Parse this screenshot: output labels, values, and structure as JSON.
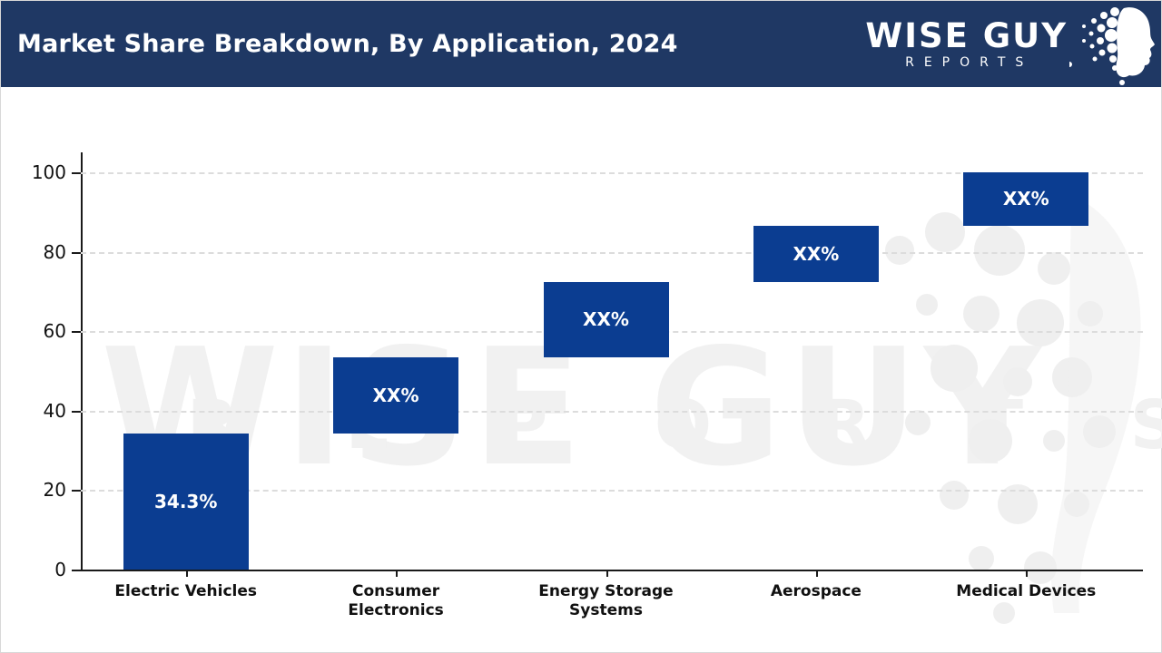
{
  "header": {
    "title": "Market Share Breakdown, By Application, 2024",
    "logo_line1": "WISE GUY",
    "logo_line2": "REPORTS"
  },
  "watermark": {
    "line1": "WISE GUY",
    "line2": "R E P O R T S"
  },
  "chart_data": {
    "type": "bar",
    "variant": "waterfall",
    "title": "Market Share Breakdown, By Application, 2024",
    "categories": [
      "Electric Vehicles",
      "Consumer Electronics",
      "Energy Storage Systems",
      "Aerospace",
      "Medical Devices"
    ],
    "categories_display": [
      [
        "Electric Vehicles"
      ],
      [
        "Consumer",
        "Electronics"
      ],
      [
        "Energy Storage",
        "Systems"
      ],
      [
        "Aerospace"
      ],
      [
        "Medical Devices"
      ]
    ],
    "segments": [
      {
        "category": "Electric Vehicles",
        "start": 0,
        "end": 34.3,
        "value": 34.3,
        "label": "34.3%"
      },
      {
        "category": "Consumer Electronics",
        "start": 34.3,
        "end": 53.5,
        "value": 19.2,
        "label": "XX%"
      },
      {
        "category": "Energy Storage Systems",
        "start": 53.5,
        "end": 72.4,
        "value": 18.9,
        "label": "XX%"
      },
      {
        "category": "Aerospace",
        "start": 72.4,
        "end": 86.6,
        "value": 14.2,
        "label": "XX%"
      },
      {
        "category": "Medical Devices",
        "start": 86.6,
        "end": 100,
        "value": 13.4,
        "label": "XX%"
      }
    ],
    "yticks": [
      0,
      20,
      40,
      60,
      80,
      100
    ],
    "ylim": [
      0,
      105
    ],
    "xlabel": "",
    "ylabel": "",
    "grid": {
      "axis": "y",
      "style": "dashed"
    },
    "legend": "none",
    "colors": {
      "bar": "#0b3d91",
      "bar_label": "#ffffff",
      "header_bg": "#1f3864",
      "header_text": "#ffffff",
      "axis": "#1a1a1a",
      "gridline": "#dcdcdc",
      "watermark": "#f1f1f1"
    }
  }
}
